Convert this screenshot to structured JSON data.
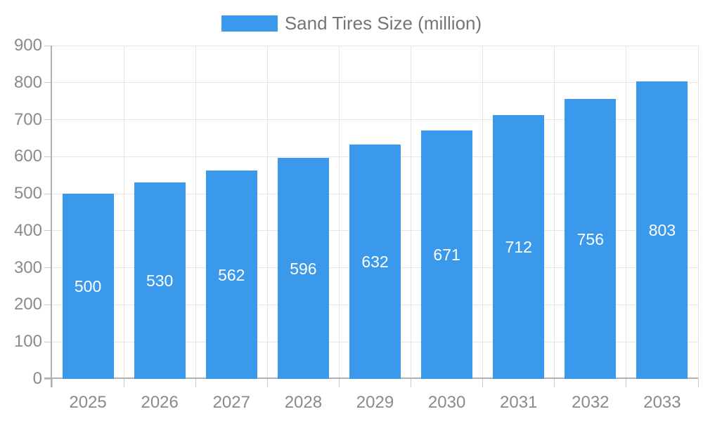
{
  "chart_data": {
    "type": "bar",
    "title": "Sand Tires Size (million)",
    "categories": [
      "2025",
      "2026",
      "2027",
      "2028",
      "2029",
      "2030",
      "2031",
      "2032",
      "2033"
    ],
    "series": [
      {
        "name": "Sand Tires Size (million)",
        "values": [
          500,
          530,
          562,
          596,
          632,
          671,
          712,
          756,
          803
        ]
      }
    ],
    "xlabel": "",
    "ylabel": "",
    "ylim": [
      0,
      900
    ],
    "y_tick_step": 100,
    "y_tick_labels": [
      "0",
      "100",
      "200",
      "300",
      "400",
      "500",
      "600",
      "700",
      "800",
      "900"
    ],
    "grid": true,
    "legend_position": "top",
    "value_label_position": "inside-center",
    "colors": {
      "bar": "#3b99ec",
      "grid": "#e6e6e6",
      "tick": "#c9c9c9",
      "axis": "#b0b0b0",
      "tick_label": "#8a8a8a",
      "legend_label": "#757575",
      "value_label": "#ffffff",
      "background": "#ffffff"
    }
  }
}
